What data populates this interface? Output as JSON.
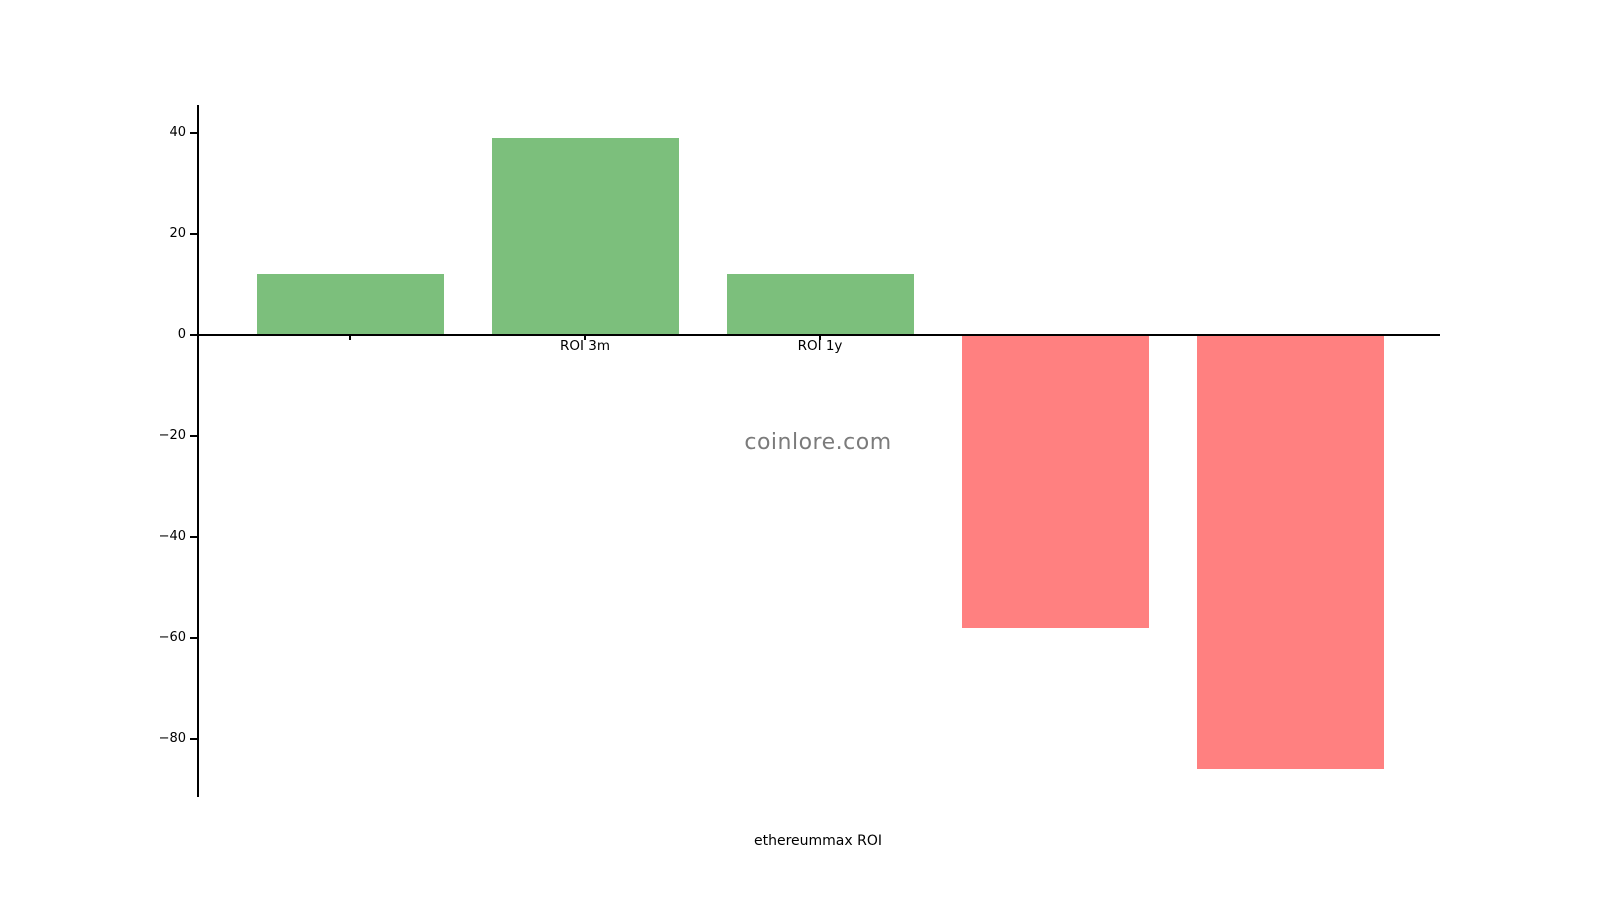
{
  "chart_data": {
    "type": "bar",
    "title": "",
    "xlabel": "ethereummax ROI",
    "ylabel": "",
    "watermark": "coinlore.com",
    "categories": [
      "",
      "ROI 3m",
      "ROI 1y",
      "",
      ""
    ],
    "values": [
      12,
      39,
      12,
      -58,
      -86
    ],
    "bar_colors": [
      "#7cbf7c",
      "#7cbf7c",
      "#7cbf7c",
      "#ff8080",
      "#ff8080"
    ],
    "positive_color": "#7cbf7c",
    "negative_color": "#ff8080",
    "axis_color": "#000000",
    "watermark_color": "#7b7b7b",
    "ytick_values": [
      40,
      20,
      0,
      -20,
      -40,
      -60,
      -80
    ],
    "ytick_labels": [
      "40",
      "20",
      "0",
      "−20",
      "−40",
      "−60",
      "−80"
    ],
    "ylim": [
      -91.5,
      45.5
    ],
    "xtick_marks_visible": [
      true,
      true,
      true,
      false,
      false
    ],
    "grid": false,
    "legend_position": "none"
  }
}
